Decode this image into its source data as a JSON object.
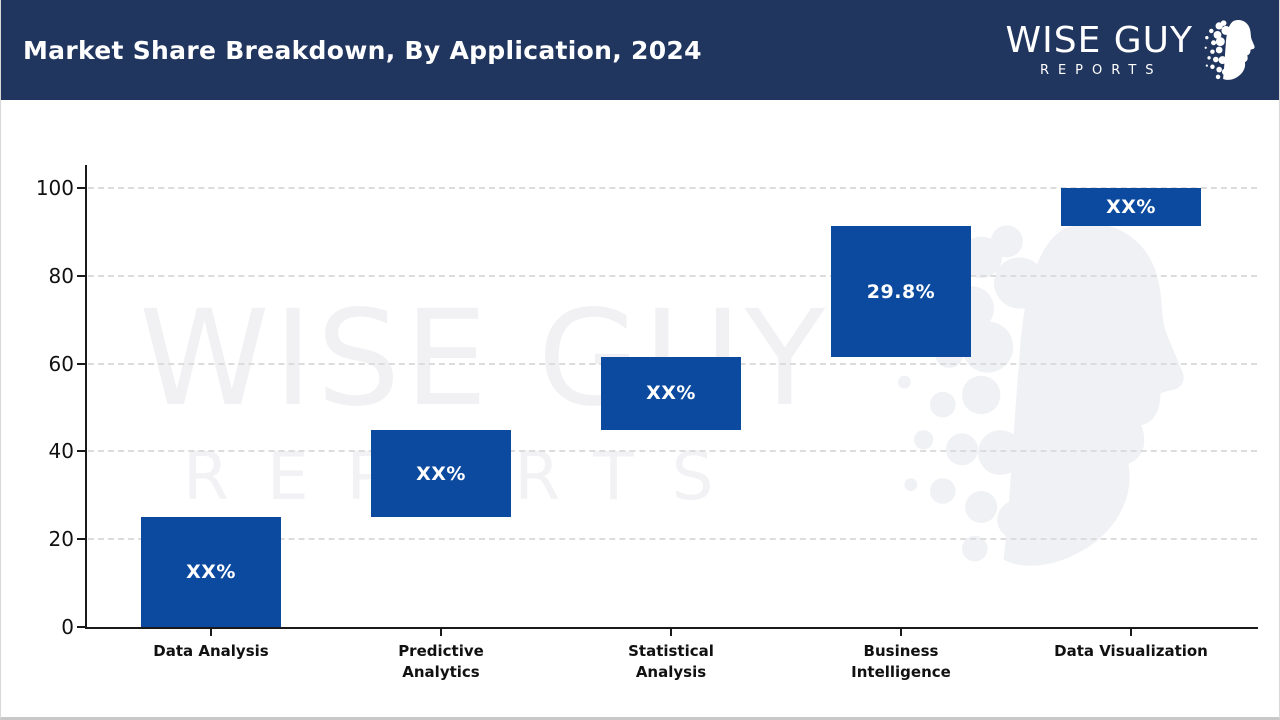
{
  "header": {
    "title": "Market Share Breakdown, By Application, 2024",
    "logo": {
      "brand_line1": "WISE GUY",
      "brand_line2": "REPORTS"
    }
  },
  "watermark": {
    "line1": "WISE GUY",
    "line2": "REPORTS"
  },
  "chart_data": {
    "type": "bar",
    "subtype": "waterfall",
    "title": "Market Share Breakdown, By Application, 2024",
    "xlabel": "",
    "ylabel": "",
    "ylim": [
      0,
      105
    ],
    "y_ticks": [
      0,
      20,
      40,
      60,
      80,
      100
    ],
    "grid": "horizontal-dashed",
    "legend": "none",
    "bar_color": "#0b4a9f",
    "categories": [
      "Data Analysis",
      "Predictive Analytics",
      "Statistical Analysis",
      "Business Intelligence",
      "Data Visualization"
    ],
    "tick_label_lines": [
      [
        "Data Analysis"
      ],
      [
        "Predictive",
        "Analytics"
      ],
      [
        "Statistical",
        "Analysis"
      ],
      [
        "Business",
        "Intelligence"
      ],
      [
        "Data Visualization"
      ]
    ],
    "segments": [
      {
        "category": "Data Analysis",
        "start": 0,
        "end": 25.0,
        "value": 25.0,
        "value_label": "XX%"
      },
      {
        "category": "Predictive Analytics",
        "start": 25.0,
        "end": 44.9,
        "value": 19.9,
        "value_label": "XX%"
      },
      {
        "category": "Statistical Analysis",
        "start": 44.9,
        "end": 61.5,
        "value": 16.6,
        "value_label": "XX%"
      },
      {
        "category": "Business Intelligence",
        "start": 61.5,
        "end": 91.3,
        "value": 29.8,
        "value_label": "29.8%"
      },
      {
        "category": "Data Visualization",
        "start": 91.3,
        "end": 100.0,
        "value": 8.7,
        "value_label": "XX%"
      }
    ]
  }
}
